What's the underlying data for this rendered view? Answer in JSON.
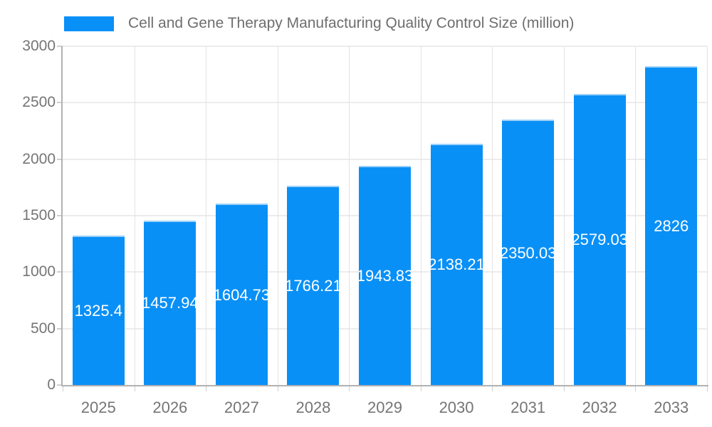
{
  "chart_data": {
    "type": "bar",
    "title": "Cell and Gene Therapy Manufacturing Quality Control Size (million)",
    "xlabel": "",
    "ylabel": "",
    "categories": [
      "2025",
      "2026",
      "2027",
      "2028",
      "2029",
      "2030",
      "2031",
      "2032",
      "2033"
    ],
    "values": [
      1325.4,
      1457.94,
      1604.73,
      1766.21,
      1943.83,
      2138.21,
      2350.03,
      2579.03,
      2826
    ],
    "bar_value_labels": [
      "1325.4",
      "1457.94",
      "1604.73",
      "1766.21",
      "1943.83",
      "2138.21",
      "2350.03",
      "2579.03",
      "2826"
    ],
    "ylim": [
      0,
      3000
    ],
    "yticks": [
      0,
      500,
      1000,
      1500,
      2000,
      2500,
      3000
    ],
    "grid": true,
    "legend_position": "top-left",
    "colors": {
      "bar": "#0990F7",
      "bar_border_top": "#9FD2F7",
      "grid_horizontal": "#ECECEC",
      "grid_vertical": "#E3E3E3",
      "axis": "#B2B2B2",
      "tick_mark": "#CFCFCF",
      "tick_label": "#757575",
      "title_text": "#6E6E6E",
      "bar_label_text": "#FFFFFF"
    }
  }
}
